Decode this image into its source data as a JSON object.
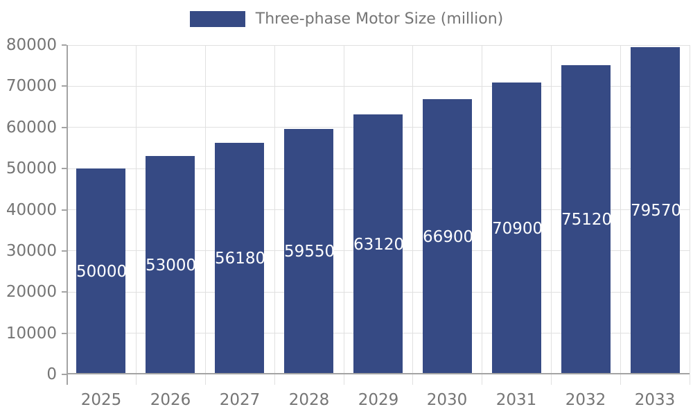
{
  "chart_data": {
    "type": "bar",
    "title": "Three-phase Motor Size (million)",
    "legend": [
      "Three-phase Motor Size (million)"
    ],
    "legend_position": "top-center",
    "categories": [
      "2025",
      "2026",
      "2027",
      "2028",
      "2029",
      "2030",
      "2031",
      "2032",
      "2033"
    ],
    "series": [
      {
        "name": "Three-phase Motor Size (million)",
        "values": [
          50000,
          53000,
          56180,
          59550,
          63120,
          66900,
          70900,
          75120,
          79570
        ]
      }
    ],
    "data_labels": [
      "50000",
      "53000",
      "56180",
      "59550",
      "63120",
      "66900",
      "70900",
      "75120",
      "79570"
    ],
    "xlabel": "",
    "ylabel": "",
    "ylim": [
      0,
      80000
    ],
    "ytick_step": 10000,
    "ytick_labels": [
      "0",
      "10000",
      "20000",
      "30000",
      "40000",
      "50000",
      "60000",
      "70000",
      "80000"
    ],
    "grid": true,
    "colors": {
      "bar": "#364A84",
      "bar_label": "#ffffff",
      "grid": "#e0e0e0",
      "axis": "#a3a3a3",
      "tick_text": "#757575",
      "legend_text": "#757575",
      "background": "#ffffff"
    }
  }
}
